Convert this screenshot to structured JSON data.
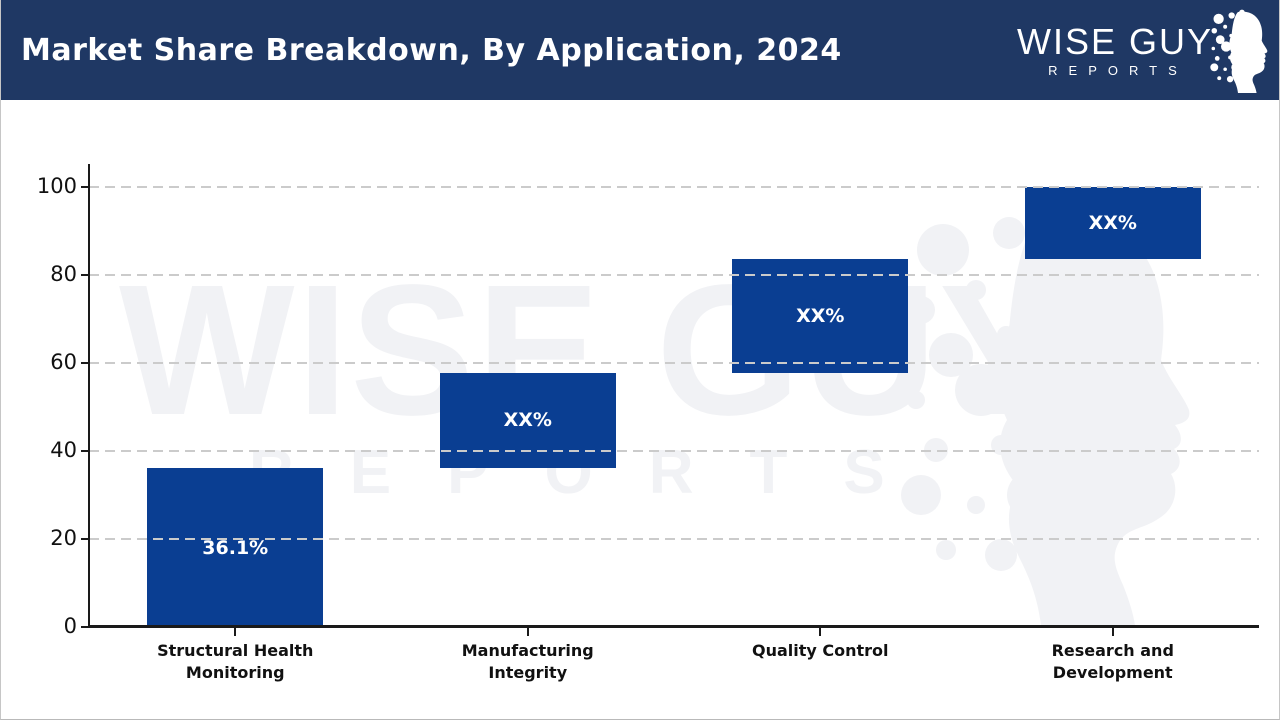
{
  "header": {
    "title": "Market Share Breakdown, By Application, 2024",
    "logo": {
      "line1": "WISE GUY",
      "line2": "REPORTS"
    }
  },
  "watermark": {
    "line1": "WISE GUY",
    "line2": "REPORTS"
  },
  "chart_data": {
    "type": "bar",
    "subtype": "waterfall",
    "title": "Market Share Breakdown, By Application, 2024",
    "categories": [
      "Structural Health\nMonitoring",
      "Manufacturing\nIntegrity",
      "Quality Control",
      "Research and\nDevelopment"
    ],
    "segments": [
      {
        "category": "Structural Health Monitoring",
        "start": 0,
        "end": 36.1,
        "label": "36.1%"
      },
      {
        "category": "Manufacturing Integrity",
        "start": 36.1,
        "end": 57.8,
        "label": "XX%"
      },
      {
        "category": "Quality Control",
        "start": 57.8,
        "end": 83.6,
        "label": "XX%"
      },
      {
        "category": "Research and Development",
        "start": 83.6,
        "end": 100,
        "label": "XX%"
      }
    ],
    "ylim": [
      0,
      100
    ],
    "yticks": [
      0,
      20,
      40,
      60,
      80,
      100
    ],
    "grid": "horizontal-dashed",
    "legend": "none",
    "colors": {
      "bar": "#0a3e92",
      "bar_label": "#ffffff",
      "header_bg": "#1f3864",
      "axis": "#1a1a1a",
      "gridline": "#cbcbcb",
      "tick_label": "#111111",
      "watermark": "#f1f2f5"
    }
  }
}
